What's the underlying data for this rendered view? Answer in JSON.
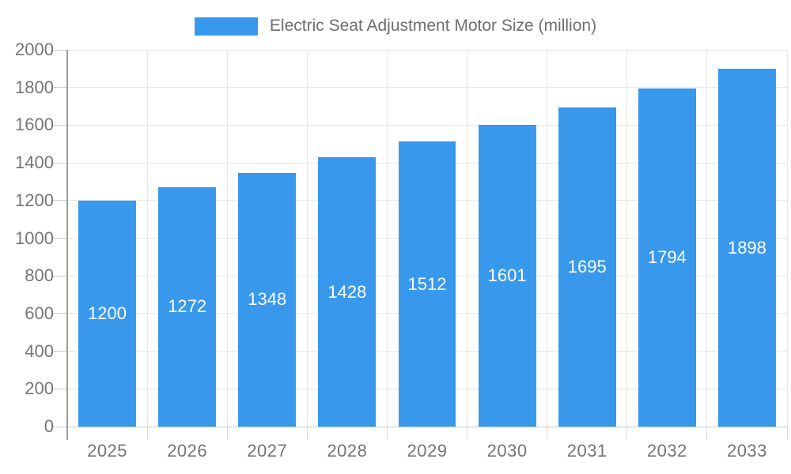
{
  "chart_data": {
    "type": "bar",
    "title": "Electric Seat Adjustment Motor Size (million)",
    "categories": [
      "2025",
      "2026",
      "2027",
      "2028",
      "2029",
      "2030",
      "2031",
      "2032",
      "2033"
    ],
    "series": [
      {
        "name": "Electric Seat Adjustment Motor Size (million)",
        "values": [
          1200,
          1272,
          1348,
          1428,
          1512,
          1601,
          1695,
          1794,
          1898
        ]
      }
    ],
    "value_labels_shown": true,
    "xlabel": "",
    "ylabel": "",
    "ylim": [
      0,
      2000
    ],
    "ytick_step": 200,
    "grid": "both",
    "legend_position": "top-center",
    "colors": {
      "bar": "#3899EC",
      "bar_label": "#FFFFFF",
      "axis_text": "#757575",
      "legend_text": "#6E6E6E",
      "grid": "#E6E6E6",
      "axis_line": "#9E9E9E",
      "y_tick": "#CCCCCC",
      "x_tick": "#D9D9D9",
      "zero_line": "#C8C8C8",
      "background": "#FFFFFF"
    }
  }
}
